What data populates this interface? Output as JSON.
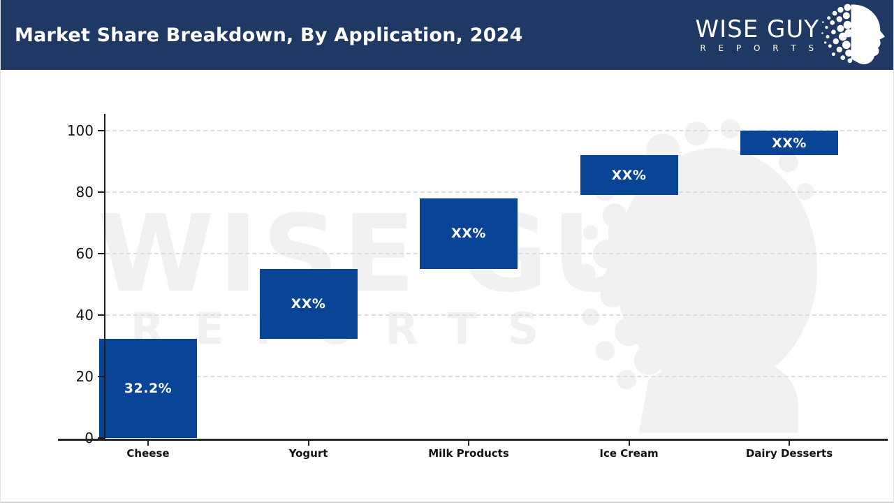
{
  "header": {
    "title": "Market Share Breakdown, By Application, 2024",
    "logo": {
      "line1": "WISE GUY",
      "line2": "R E P O R T S"
    }
  },
  "watermark": {
    "line1": "WISE GUY",
    "line2": "REPORTS"
  },
  "colors": {
    "header_bg": "#203864",
    "bar": "#0a4496",
    "bar_label": "#ffffff",
    "gridline": "#dcdcdc",
    "axis": "#1a1a1a",
    "watermark": "#f1f1f1"
  },
  "chart_data": {
    "type": "bar",
    "subtype": "waterfall",
    "title": "Market Share Breakdown, By Application, 2024",
    "xlabel": "",
    "ylabel": "",
    "categories": [
      "Cheese",
      "Yogurt",
      "Milk Products",
      "Ice Cream",
      "Dairy Desserts"
    ],
    "segments": [
      {
        "category": "Cheese",
        "start": 0,
        "end": 32.2,
        "label": "32.2%"
      },
      {
        "category": "Yogurt",
        "start": 32.2,
        "end": 55,
        "label": "XX%"
      },
      {
        "category": "Milk Products",
        "start": 55,
        "end": 78,
        "label": "XX%"
      },
      {
        "category": "Ice Cream",
        "start": 79,
        "end": 92,
        "label": "XX%"
      },
      {
        "category": "Dairy Desserts",
        "start": 92,
        "end": 100,
        "label": "XX%"
      }
    ],
    "yticks": [
      0,
      20,
      40,
      60,
      80,
      100
    ],
    "ylim": [
      0,
      105
    ],
    "grid": "horizontal-dashed",
    "legend": "none",
    "bar_color": "#0a4496"
  }
}
